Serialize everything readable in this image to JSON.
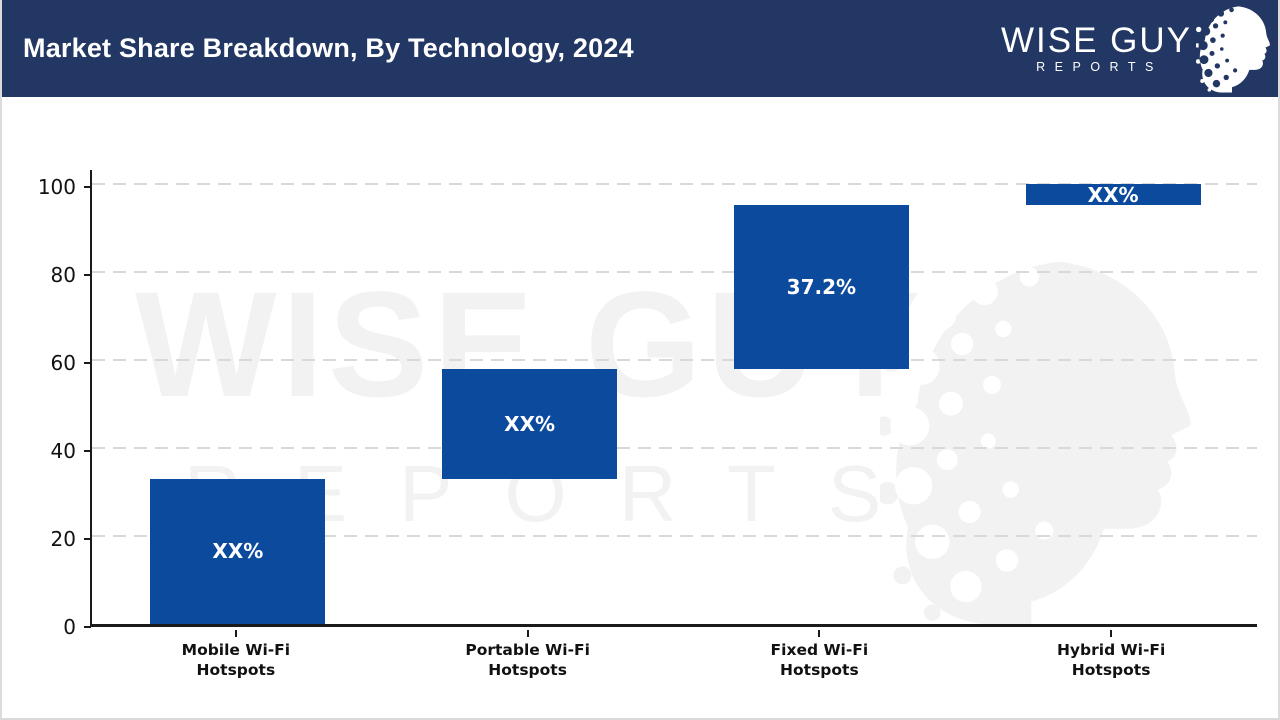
{
  "header": {
    "title": "Market Share Breakdown, By Technology, 2024",
    "logo": {
      "line1": "WISE GUY",
      "line2": "REPORTS"
    }
  },
  "watermark": {
    "line1": "WISE GUY",
    "line2": "REPORTS"
  },
  "colors": {
    "header_bg": "#223763",
    "bar_blue": "#0c4a9e",
    "bar_label": "#ffffff",
    "grid": "#d9d9d9",
    "axis": "#1a1a1a",
    "watermark": "#f2f2f2"
  },
  "chart_data": {
    "type": "bar",
    "subtype": "waterfall",
    "title": "Market Share Breakdown, By Technology, 2024",
    "categories": [
      "Mobile Wi-Fi\nHotspots",
      "Portable Wi-Fi\nHotspots",
      "Fixed Wi-Fi\nHotspots",
      "Hybrid Wi-Fi\nHotspots"
    ],
    "segments": [
      {
        "category": "Mobile Wi-Fi Hotspots",
        "start": 0,
        "end": 33,
        "label": "XX%"
      },
      {
        "category": "Portable Wi-Fi Hotspots",
        "start": 33,
        "end": 58,
        "label": "XX%"
      },
      {
        "category": "Fixed Wi-Fi Hotspots",
        "start": 58,
        "end": 95.2,
        "label": "37.2%"
      },
      {
        "category": "Hybrid Wi-Fi Hotspots",
        "start": 95.2,
        "end": 100,
        "label": "XX%"
      }
    ],
    "xlabel": "",
    "ylabel": "",
    "ylim": [
      0,
      100
    ],
    "yticks": [
      0,
      20,
      40,
      60,
      80,
      100
    ],
    "grid": "horizontal-dashed",
    "legend": "none",
    "bar_color": "#0c4a9e",
    "bar_label_color": "#ffffff"
  }
}
